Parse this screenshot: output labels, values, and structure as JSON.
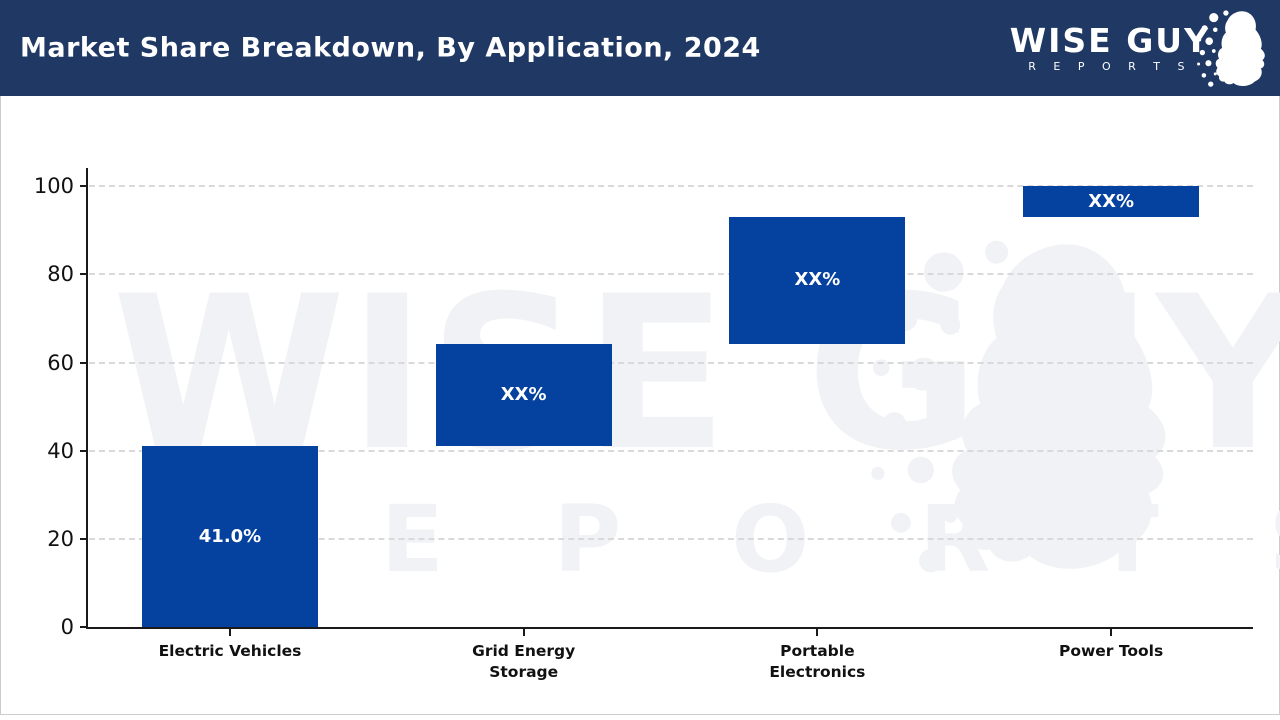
{
  "header": {
    "title": "Market Share Breakdown, By Application, 2024",
    "logo": {
      "brand_line1": "WISE GUY",
      "brand_line2": "R E P O R T S"
    }
  },
  "watermark": {
    "line1": "WISE GUY",
    "line2": "REPORTS"
  },
  "colors": {
    "header_bg": "#1f3864",
    "bar_fill": "#05419e",
    "bar_label_text": "#ffffff",
    "grid_line": "#d9d9d9",
    "axis_line": "#1a1a1a",
    "tick_label": "#111111",
    "watermark": "#f1f2f5",
    "card_border": "#cccccc"
  },
  "chart_data": {
    "type": "bar",
    "subtype": "floating-waterfall",
    "title": "Market Share Breakdown, By Application, 2024",
    "xlabel": "",
    "ylabel": "",
    "ylim": [
      0,
      104
    ],
    "yticks": [
      0,
      20,
      40,
      60,
      80,
      100
    ],
    "grid": "dashed-horizontal",
    "legend": "none",
    "categories": [
      "Electric Vehicles",
      "Grid Energy\nStorage",
      "Portable\nElectronics",
      "Power Tools"
    ],
    "series": [
      {
        "name": "Market share (%)",
        "segments": [
          {
            "category": "Electric Vehicles",
            "start": 0,
            "end": 41.0,
            "label": "41.0%"
          },
          {
            "category": "Grid Energy Storage",
            "start": 41.0,
            "end": 64.3,
            "label": "XX%"
          },
          {
            "category": "Portable Electronics",
            "start": 64.3,
            "end": 93.0,
            "label": "XX%"
          },
          {
            "category": "Power Tools",
            "start": 93.0,
            "end": 100.0,
            "label": "XX%"
          }
        ]
      }
    ]
  }
}
